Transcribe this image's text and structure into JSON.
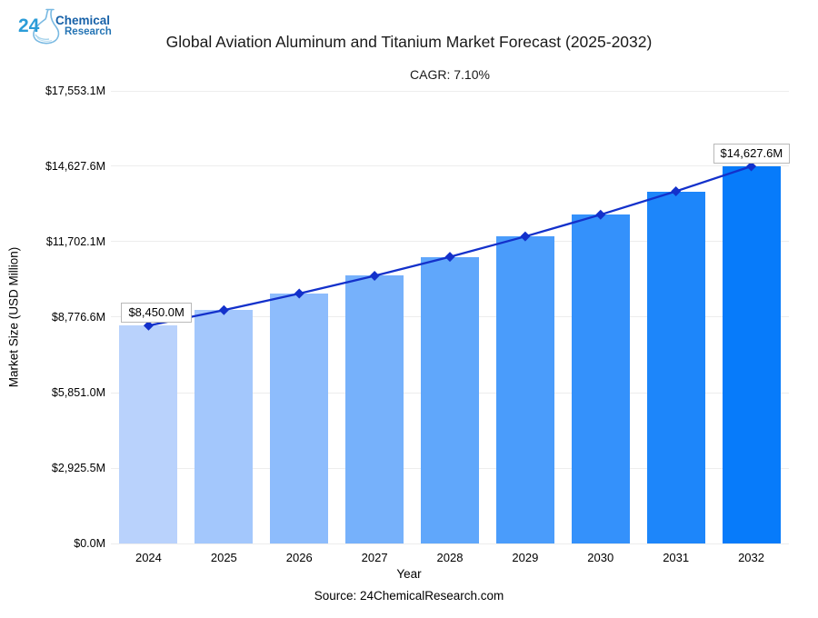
{
  "brand": {
    "number": "24",
    "line1": "Chemical",
    "line2": "Research"
  },
  "header": {
    "title": "Global Aviation Aluminum and Titanium Market Forecast (2025-2032)",
    "subtitle": "CAGR: 7.10%"
  },
  "footer": {
    "source": "Source: 24ChemicalResearch.com"
  },
  "chart_data": {
    "type": "bar",
    "title": "Global Aviation Aluminum and Titanium Market Forecast (2025-2032)",
    "subtitle": "CAGR: 7.10%",
    "xlabel": "Year",
    "ylabel": "Market Size (USD Million)",
    "categories": [
      "2024",
      "2025",
      "2026",
      "2027",
      "2028",
      "2029",
      "2030",
      "2031",
      "2032"
    ],
    "series": [
      {
        "name": "Market Size (bar)",
        "type": "bar",
        "values": [
          8450.0,
          9050.0,
          9692.5,
          10380.7,
          11117.7,
          11907.0,
          12752.4,
          13657.9,
          14627.6
        ]
      },
      {
        "name": "Market Size (trend line)",
        "type": "line",
        "values": [
          8450.0,
          9050.0,
          9692.5,
          10380.7,
          11117.7,
          11907.0,
          12752.4,
          13657.9,
          14627.6
        ]
      }
    ],
    "ylim": [
      0,
      17553.1
    ],
    "yticks": [
      {
        "value": 0,
        "label": "$0.0M"
      },
      {
        "value": 2925.5,
        "label": "$2,925.5M"
      },
      {
        "value": 5851.0,
        "label": "$5,851.0M"
      },
      {
        "value": 8776.6,
        "label": "$8,776.6M"
      },
      {
        "value": 11702.1,
        "label": "$11,702.1M"
      },
      {
        "value": 14627.6,
        "label": "$14,627.6M"
      },
      {
        "value": 17553.1,
        "label": "$17,553.1M"
      }
    ],
    "point_labels": [
      {
        "index": 0,
        "text": "$8,450.0M"
      },
      {
        "index": 8,
        "text": "$14,627.6M"
      }
    ],
    "grid": true,
    "legend": "none",
    "colors": {
      "bar_gradient_start": "#B9D2FC",
      "bar_gradient_end": "#077BFA",
      "line": "#1331CB",
      "grid": "#EDEDED"
    }
  }
}
